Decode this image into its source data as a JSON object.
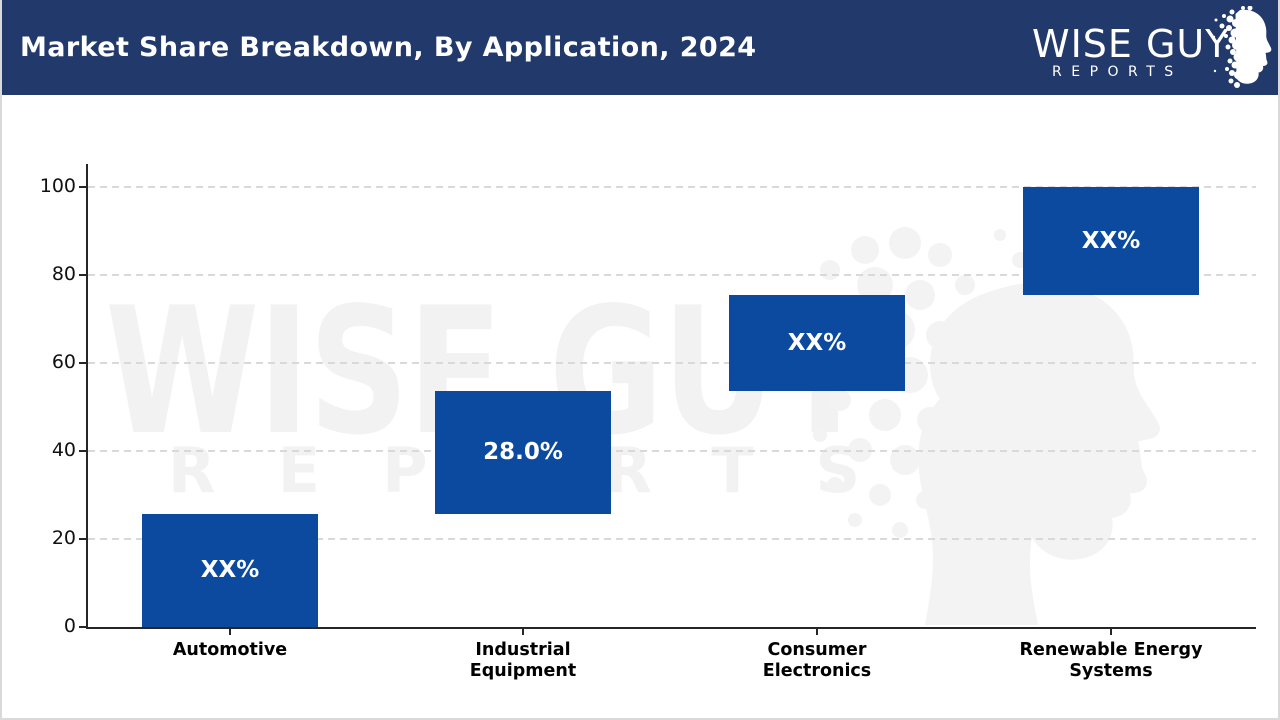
{
  "header": {
    "title": "Market Share Breakdown, By Application, 2024",
    "bg_color": "#22396b",
    "logo": {
      "line1": "WISE GUY",
      "line2": "REPORTS"
    }
  },
  "watermark": {
    "line1": "WISE GUY",
    "line2": "REPORTS"
  },
  "chart_data": {
    "type": "bar",
    "subtype": "floating-waterfall",
    "title": "Market Share Breakdown, By Application, 2024",
    "unit": "%",
    "categories": [
      "Automotive",
      "Industrial Equipment",
      "Consumer Electronics",
      "Renewable Energy Systems"
    ],
    "category_label_lines": [
      [
        "Automotive"
      ],
      [
        "Industrial",
        "Equipment"
      ],
      [
        "Consumer",
        "Electronics"
      ],
      [
        "Renewable Energy",
        "Systems"
      ]
    ],
    "segments": [
      {
        "category": "Automotive",
        "start": 0,
        "end": 25.7,
        "label": "XX%"
      },
      {
        "category": "Industrial Equipment",
        "start": 25.7,
        "end": 53.7,
        "label": "28.0%",
        "value": 28.0
      },
      {
        "category": "Consumer Electronics",
        "start": 53.7,
        "end": 75.4,
        "label": "XX%"
      },
      {
        "category": "Renewable Energy Systems",
        "start": 75.4,
        "end": 100,
        "label": "XX%"
      }
    ],
    "ylim": [
      0,
      100
    ],
    "yticks": [
      "0",
      "20",
      "40",
      "60",
      "80",
      "100"
    ],
    "grid": {
      "horizontal": true,
      "style": "dashed",
      "color": "#d9d9d9"
    },
    "bar_color": "#0b4a9f",
    "bar_label_color": "#ffffff",
    "axis_color": "#262626",
    "legend": "none"
  }
}
